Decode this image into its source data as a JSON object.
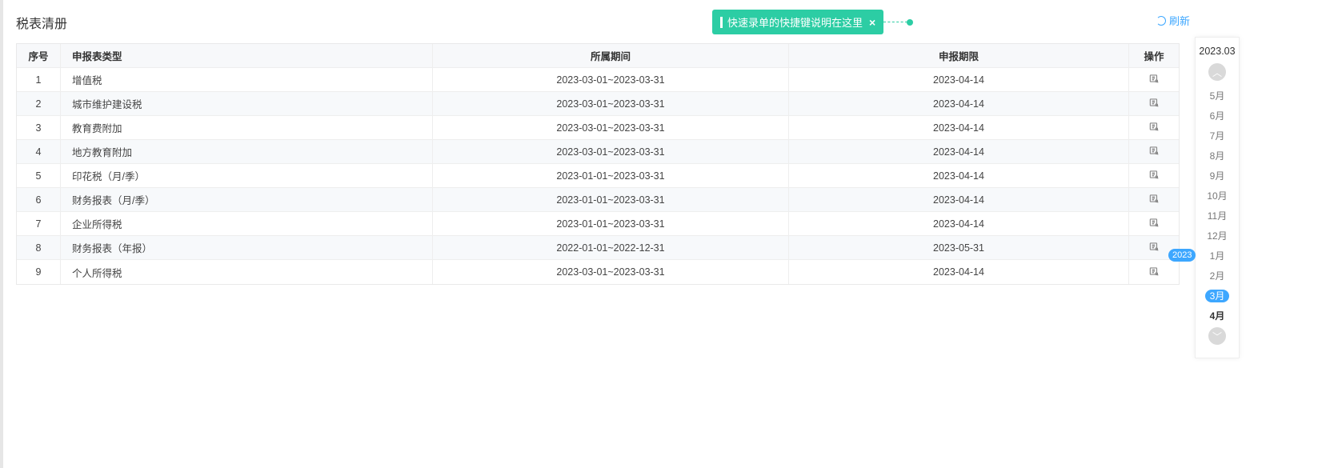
{
  "title": "税表清册",
  "tip": {
    "text": "快速录单的快捷键说明在这里",
    "close": "×"
  },
  "refresh_label": "刷新",
  "table": {
    "columns": {
      "idx": "序号",
      "type": "申报表类型",
      "period": "所属期间",
      "due": "申报期限",
      "op": "操作"
    },
    "rows": [
      {
        "idx": "1",
        "type": "增值税",
        "period": "2023-03-01~2023-03-31",
        "due": "2023-04-14"
      },
      {
        "idx": "2",
        "type": "城市维护建设税",
        "period": "2023-03-01~2023-03-31",
        "due": "2023-04-14"
      },
      {
        "idx": "3",
        "type": "教育费附加",
        "period": "2023-03-01~2023-03-31",
        "due": "2023-04-14"
      },
      {
        "idx": "4",
        "type": "地方教育附加",
        "period": "2023-03-01~2023-03-31",
        "due": "2023-04-14"
      },
      {
        "idx": "5",
        "type": "印花税（月/季）",
        "period": "2023-01-01~2023-03-31",
        "due": "2023-04-14"
      },
      {
        "idx": "6",
        "type": "财务报表（月/季）",
        "period": "2023-01-01~2023-03-31",
        "due": "2023-04-14"
      },
      {
        "idx": "7",
        "type": "企业所得税",
        "period": "2023-01-01~2023-03-31",
        "due": "2023-04-14"
      },
      {
        "idx": "8",
        "type": "财务报表（年报）",
        "period": "2022-01-01~2022-12-31",
        "due": "2023-05-31"
      },
      {
        "idx": "9",
        "type": "个人所得税",
        "period": "2023-03-01~2023-03-31",
        "due": "2023-04-14"
      }
    ]
  },
  "timeline": {
    "heading": "2023.03",
    "year_badge": "2023",
    "months": [
      {
        "label": "5月"
      },
      {
        "label": "6月"
      },
      {
        "label": "7月"
      },
      {
        "label": "8月"
      },
      {
        "label": "9月"
      },
      {
        "label": "10月"
      },
      {
        "label": "11月"
      },
      {
        "label": "12月"
      },
      {
        "label": "1月",
        "year_start": true
      },
      {
        "label": "2月"
      },
      {
        "label": "3月",
        "active": true
      },
      {
        "label": "4月",
        "bold": true
      }
    ]
  },
  "expand_glyph": "»"
}
